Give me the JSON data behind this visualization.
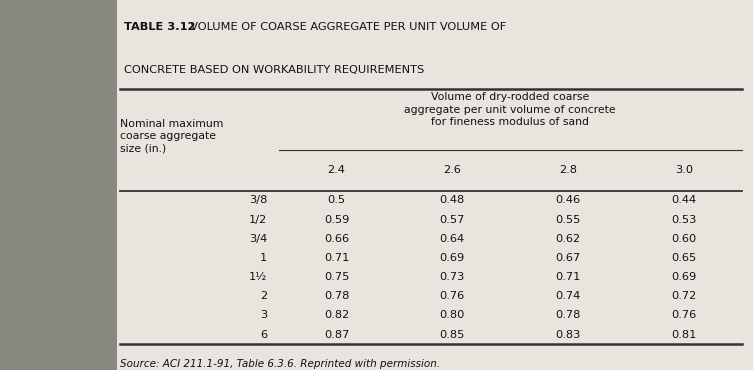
{
  "title_bold": "TABLE 3.12",
  "title_normal": "  VOLUME OF COARSE AGGREGATE PER UNIT VOLUME OF",
  "title_line2": "CONCRETE BASED ON WORKABILITY REQUIREMENTS",
  "col_header_main": "Volume of dry-rodded coarse\naggregate per unit volume of concrete\nfor fineness modulus of sand",
  "col_header_row1_label": "Nominal maximum\ncoarse aggregate\nsize (in.)",
  "col_subheaders": [
    "2.4",
    "2.6",
    "2.8",
    "3.0"
  ],
  "row_labels": [
    "3/8",
    "1/2",
    "3/4",
    "1",
    "1½",
    "2",
    "3",
    "6"
  ],
  "data": [
    [
      "0.5",
      "0.48",
      "0.46",
      "0.44"
    ],
    [
      "0.59",
      "0.57",
      "0.55",
      "0.53"
    ],
    [
      "0.66",
      "0.64",
      "0.62",
      "0.60"
    ],
    [
      "0.71",
      "0.69",
      "0.67",
      "0.65"
    ],
    [
      "0.75",
      "0.73",
      "0.71",
      "0.69"
    ],
    [
      "0.78",
      "0.76",
      "0.74",
      "0.72"
    ],
    [
      "0.82",
      "0.80",
      "0.78",
      "0.76"
    ],
    [
      "0.87",
      "0.85",
      "0.83",
      "0.81"
    ]
  ],
  "source_text": "Source: ACI 211.1-91, Table 6.3.6. Reprinted with permission.",
  "left_bar_color": "#7a7a7a",
  "left_bar_width": 0.155,
  "bg_color": "#c8c4b8",
  "page_color": "#e8e5de",
  "text_color": "#111111",
  "line_color": "#333333"
}
